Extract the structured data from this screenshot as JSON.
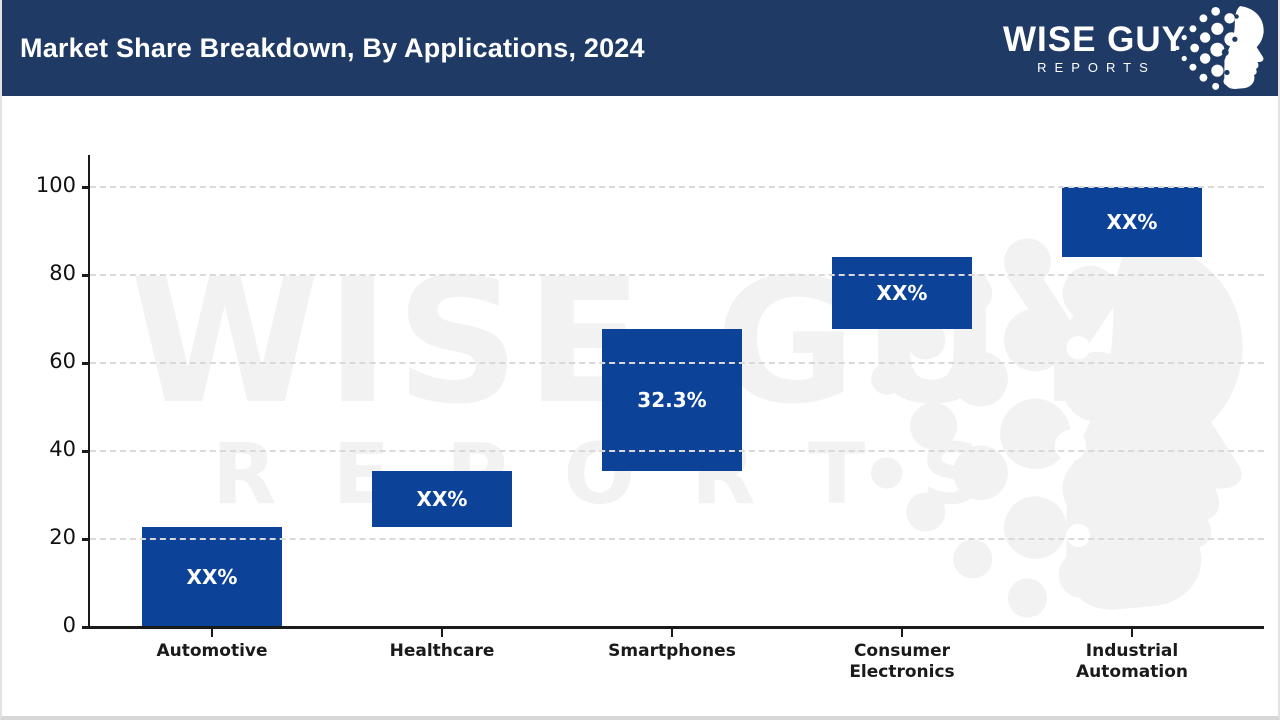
{
  "header": {
    "title": "Market Share Breakdown, By Applications, 2024",
    "bg_color": "#203a66",
    "text_color": "#ffffff",
    "logo": {
      "line1": "WISE GUY",
      "line2": "REPORTS"
    }
  },
  "watermark": {
    "line1": "WISE GUY",
    "line2": "REPORTS",
    "color": "#f2f2f2"
  },
  "chart_data": {
    "type": "bar",
    "variant": "floating-waterfall",
    "title": "Market Share Breakdown, By Applications, 2024",
    "categories": [
      "Automotive",
      "Healthcare",
      "Smartphones",
      "Consumer Electronics",
      "Industrial Automation"
    ],
    "segments": [
      {
        "category": "Automotive",
        "start": 0,
        "end": 22.7,
        "value": 22.7,
        "label": "XX%"
      },
      {
        "category": "Healthcare",
        "start": 22.7,
        "end": 35.4,
        "value": 12.7,
        "label": "XX%"
      },
      {
        "category": "Smartphones",
        "start": 35.4,
        "end": 67.7,
        "value": 32.3,
        "label": "32.3%"
      },
      {
        "category": "Consumer Electronics",
        "start": 67.7,
        "end": 84.1,
        "value": 16.4,
        "label": "XX%"
      },
      {
        "category": "Industrial Automation",
        "start": 84.1,
        "end": 100,
        "value": 15.9,
        "label": "XX%"
      }
    ],
    "yticks": [
      0,
      20,
      40,
      60,
      80,
      100
    ],
    "ylim": [
      0,
      100
    ],
    "xlabel": "",
    "ylabel": "",
    "bar_color": "#0c4399",
    "bar_label_color": "#ffffff",
    "grid": {
      "show": true,
      "style": "dashed",
      "color": "#d9d9d9"
    },
    "axis_color": "#1a1a1a",
    "tick_label_color": "#111111",
    "legend": false
  }
}
